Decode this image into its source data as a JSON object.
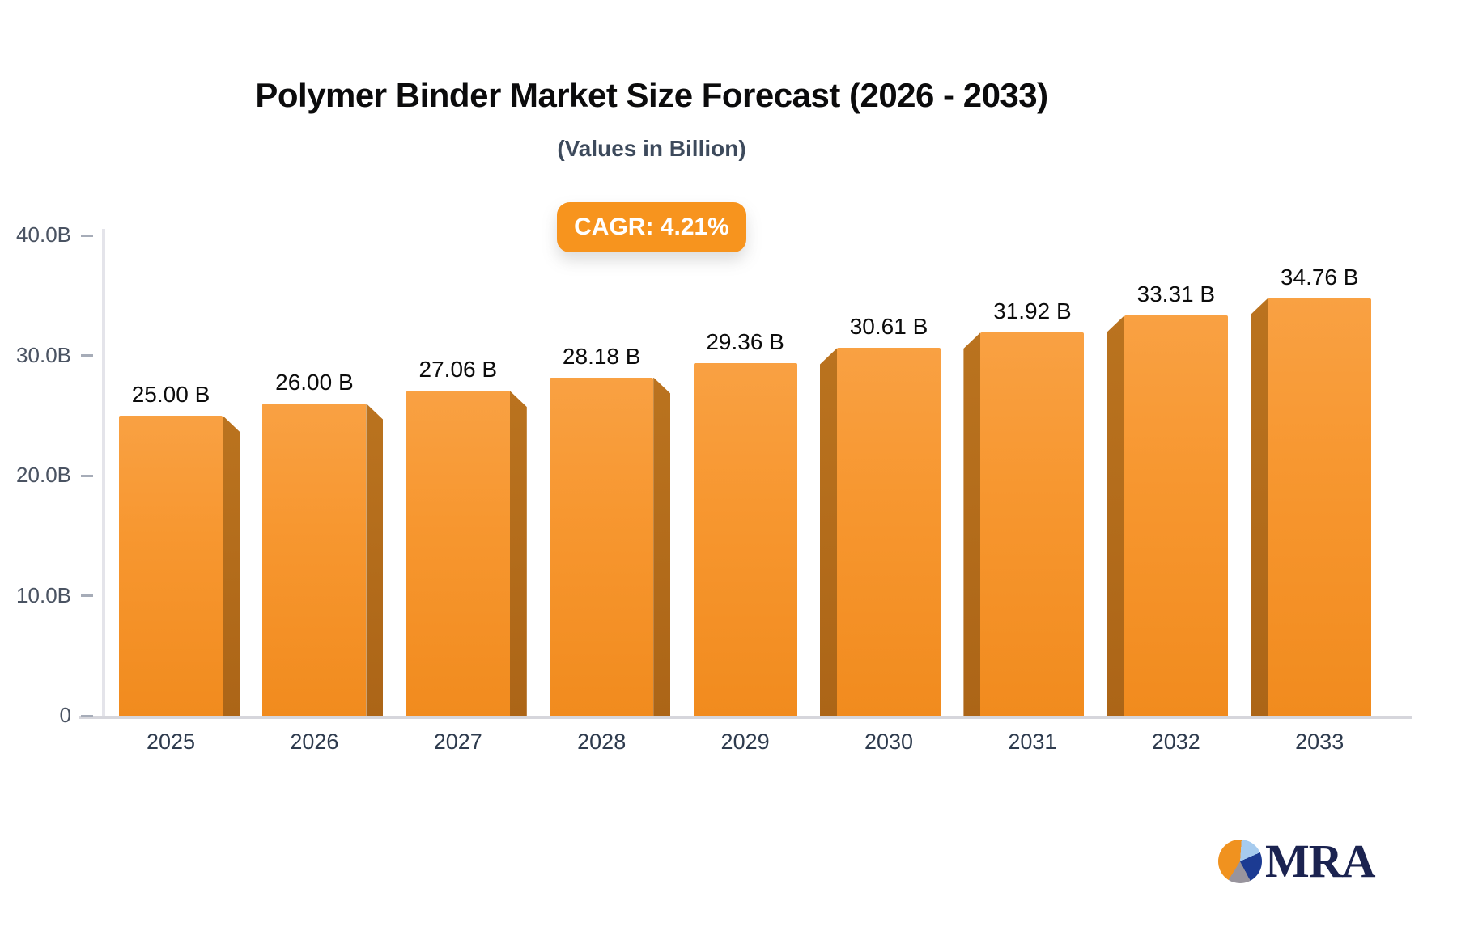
{
  "chart": {
    "title": "Polymer Binder Market Size Forecast (2026 - 2033)",
    "subtitle": "(Values in Billion)",
    "cagr_label": "CAGR: 4.21%"
  },
  "chart_data": {
    "type": "bar",
    "title": "Polymer Binder Market Size Forecast (2026 - 2033)",
    "subtitle": "(Values in Billion)",
    "annotation": "CAGR: 4.21%",
    "categories": [
      "2025",
      "2026",
      "2027",
      "2028",
      "2029",
      "2030",
      "2031",
      "2032",
      "2033"
    ],
    "values": [
      25.0,
      26.0,
      27.06,
      28.18,
      29.36,
      30.61,
      31.92,
      33.31,
      34.76
    ],
    "value_labels": [
      "25.00 B",
      "26.00 B",
      "27.06 B",
      "28.18 B",
      "29.36 B",
      "30.61 B",
      "31.92 B",
      "33.31 B",
      "34.76 B"
    ],
    "unit": "Billion",
    "xlabel": "",
    "ylabel": "",
    "ylim": [
      0,
      40
    ],
    "y_ticks": [
      {
        "value": 40,
        "label": "40.0B"
      },
      {
        "value": 30,
        "label": "30.0B"
      },
      {
        "value": 20,
        "label": "20.0B"
      },
      {
        "value": 10,
        "label": "10.0B"
      },
      {
        "value": 0,
        "label": "0"
      }
    ],
    "grid": false,
    "legend": false,
    "bar_style": "3d-pseudo",
    "colors": {
      "bar_face_top": "#f9a143",
      "bar_face_bottom": "#f18b1e",
      "bar_side": "#b36c1c",
      "annotation_bg": "#f7941e",
      "annotation_text": "#ffffff"
    }
  },
  "branding": {
    "logo_text": "MRA",
    "pie_colors": {
      "orange": "#f0921f",
      "light_blue": "#a6cbee",
      "navy": "#1c3b92",
      "gray": "#98949d"
    }
  }
}
